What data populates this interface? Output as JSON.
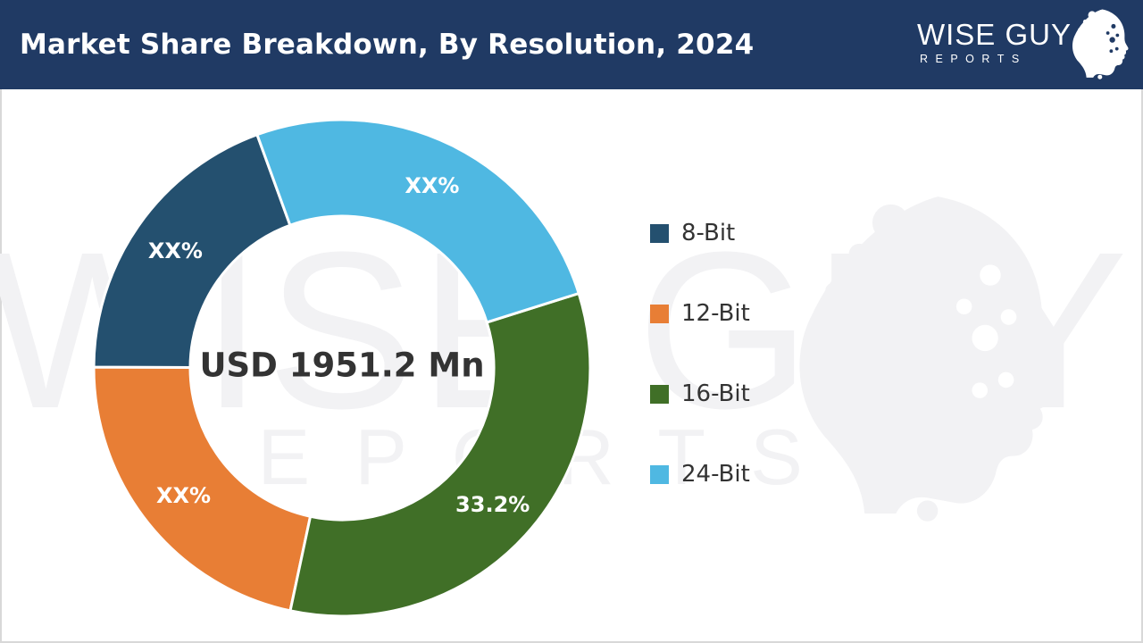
{
  "header": {
    "title": "Market Share Breakdown, By Resolution, 2024",
    "logo_line1": "WISE GUY",
    "logo_line2": "REPORTS"
  },
  "watermark": {
    "line1": "WISE GUY",
    "line2": "REPORTS"
  },
  "chart_data": {
    "type": "pie",
    "subtype": "donut",
    "title": "Market Share Breakdown, By Resolution, 2024",
    "center_label": "USD 1951.2 Mn",
    "legend_position": "right",
    "rotation_cw_from_top_deg": 340,
    "direction": "counterclockwise",
    "segments": [
      {
        "name": "8-Bit",
        "label": "XX%",
        "pct": 19.4,
        "pct_shown": false,
        "color": "#24506F"
      },
      {
        "name": "12-Bit",
        "label": "XX%",
        "pct": 21.7,
        "pct_shown": false,
        "color": "#E87E35"
      },
      {
        "name": "16-Bit",
        "label": "33.2%",
        "pct": 33.2,
        "pct_shown": true,
        "color": "#406F27"
      },
      {
        "name": "24-Bit",
        "label": "XX%",
        "pct": 25.7,
        "pct_shown": false,
        "color": "#4FB8E2"
      }
    ]
  },
  "colors": {
    "header_bg": "#203A64",
    "separator": "#FFFFFF",
    "center_text": "#333333",
    "legend_text": "#333333",
    "watermark": "#F2F2F4",
    "frame_border": "#D8D8D8"
  }
}
